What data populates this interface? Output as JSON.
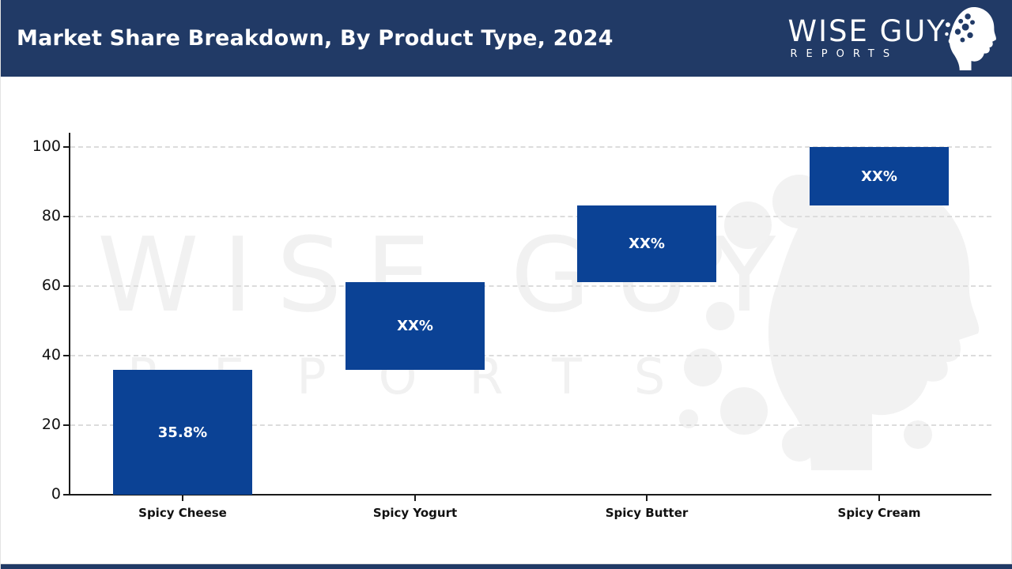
{
  "header": {
    "title": "Market Share Breakdown, By Product Type, 2024",
    "bg_color": "#213A66",
    "logo": {
      "line1": "WISE GUY",
      "line2": "REPORTS"
    }
  },
  "watermark": {
    "line1": "WISE GUY",
    "line2": "REPORTS"
  },
  "footer": {
    "bg_color": "#213A66"
  },
  "chart_data": {
    "type": "bar",
    "subtype": "waterfall",
    "title": "Market Share Breakdown, By Product Type, 2024",
    "categories": [
      "Spicy Cheese",
      "Spicy Yogurt",
      "Spicy Butter",
      "Spicy Cream"
    ],
    "bars": [
      {
        "category": "Spicy Cheese",
        "base": 0,
        "top": 35.8,
        "label": "35.8%"
      },
      {
        "category": "Spicy Yogurt",
        "base": 35.8,
        "top": 61,
        "label": "XX%"
      },
      {
        "category": "Spicy Butter",
        "base": 61,
        "top": 83,
        "label": "XX%"
      },
      {
        "category": "Spicy Cream",
        "base": 83,
        "top": 100,
        "label": "XX%"
      }
    ],
    "y_ticks": [
      0,
      20,
      40,
      60,
      80,
      100
    ],
    "ylim": [
      0,
      104
    ],
    "bar_color": "#0B4295",
    "grid": "dashed-horizontal",
    "legend": "none"
  }
}
